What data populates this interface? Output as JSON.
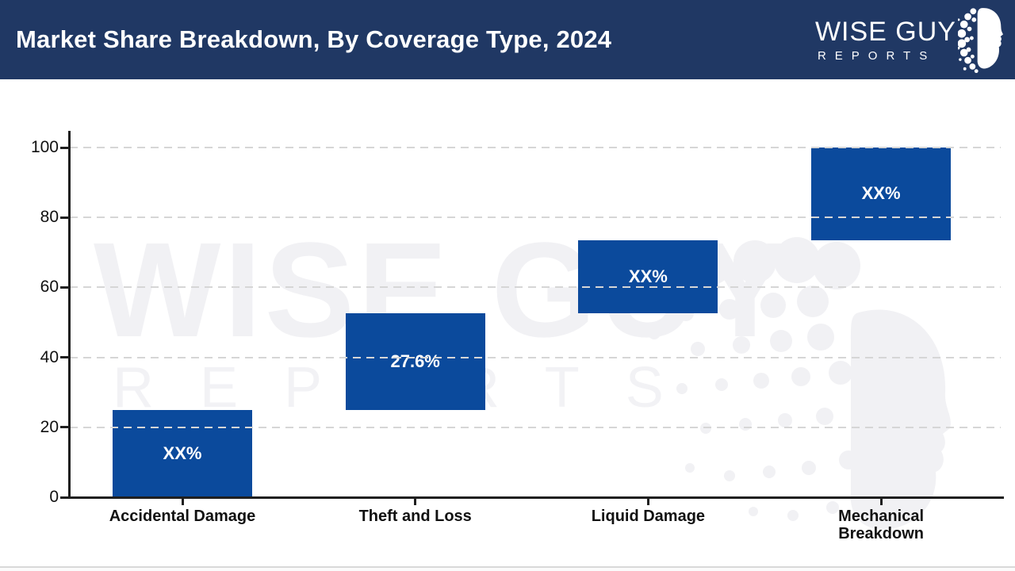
{
  "header": {
    "title": "Market Share Breakdown, By Coverage Type, 2024",
    "logo": {
      "name": "WISE GUY",
      "sub": "REPORTS"
    }
  },
  "watermark": {
    "name": "WISE GUY",
    "sub": "REPORTS"
  },
  "colors": {
    "header_bg": "#203864",
    "bar_fill": "#0b4a9c",
    "bar_label_text": "#ffffff",
    "grid_line": "#d6d6d6",
    "axis_line": "#1f1f1f",
    "tick_text": "#111111",
    "watermark": "#f1f1f4"
  },
  "chart_data": {
    "type": "bar",
    "variant": "waterfall-floating-segments",
    "title": "Market Share Breakdown, By Coverage Type, 2024",
    "xlabel": "",
    "ylabel": "",
    "ylim": [
      0,
      100
    ],
    "yticks": [
      0,
      20,
      40,
      60,
      80,
      100
    ],
    "grid": "horizontal-dashed",
    "legend": "none",
    "categories": [
      "Accidental Damage",
      "Theft and Loss",
      "Liquid Damage",
      "Mechanical Breakdown"
    ],
    "segments": [
      {
        "category": "Accidental Damage",
        "display": "Accidental Damage",
        "start": 0,
        "end": 25,
        "height": 25,
        "label": "XX%"
      },
      {
        "category": "Theft and Loss",
        "display": "Theft and Loss",
        "start": 25,
        "end": 52.6,
        "height": 27.6,
        "label": "27.6%"
      },
      {
        "category": "Liquid Damage",
        "display": "Liquid Damage",
        "start": 52.6,
        "end": 73.5,
        "height": 20.9,
        "label": "XX%"
      },
      {
        "category": "Mechanical Breakdown",
        "display": "Mechanical\nBreakdown",
        "start": 73.5,
        "end": 100,
        "height": 26.5,
        "label": "XX%"
      }
    ]
  }
}
